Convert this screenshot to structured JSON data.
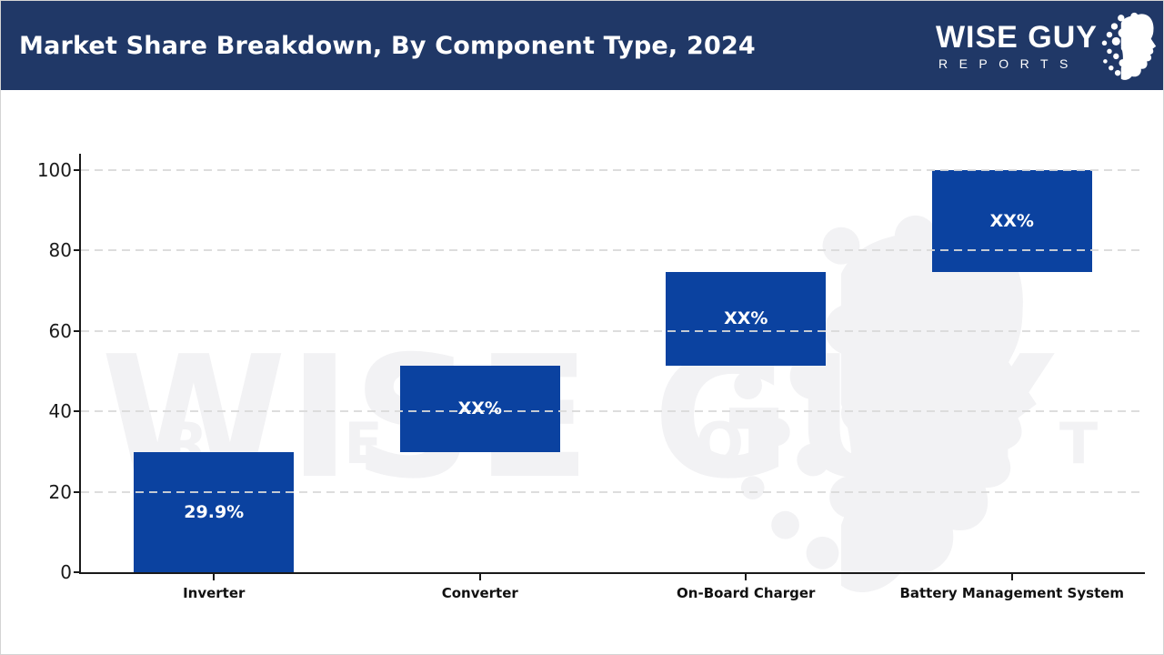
{
  "header": {
    "title": "Market Share Breakdown, By Component Type, 2024",
    "bg_color": "#203867",
    "logo": {
      "line1": "WISE GUY",
      "line2": "REPORTS"
    }
  },
  "watermark": {
    "line1": "WISE GUY",
    "line2": "R E P O R T S"
  },
  "chart_data": {
    "type": "bar",
    "subtype": "waterfall",
    "title": "Market Share Breakdown, By Component Type, 2024",
    "categories": [
      "Inverter",
      "Converter",
      "On-Board Charger",
      "Battery Management System"
    ],
    "segments": [
      {
        "start": 0,
        "end": 29.9
      },
      {
        "start": 29.9,
        "end": 51.4
      },
      {
        "start": 51.4,
        "end": 74.7
      },
      {
        "start": 74.7,
        "end": 100
      }
    ],
    "bar_labels": [
      "29.9%",
      "XX%",
      "XX%",
      "XX%"
    ],
    "yticks": [
      "0",
      "20",
      "40",
      "60",
      "80",
      "100"
    ],
    "ylim": [
      0,
      105
    ],
    "xlabel": "",
    "ylabel": "",
    "grid": "horizontal-dashed",
    "legend": "none",
    "bar_color": "#0b42a0",
    "bar_label_color": "#ffffff",
    "axis_color": "#1a1a1a",
    "grid_color": "#d9d9d9"
  }
}
